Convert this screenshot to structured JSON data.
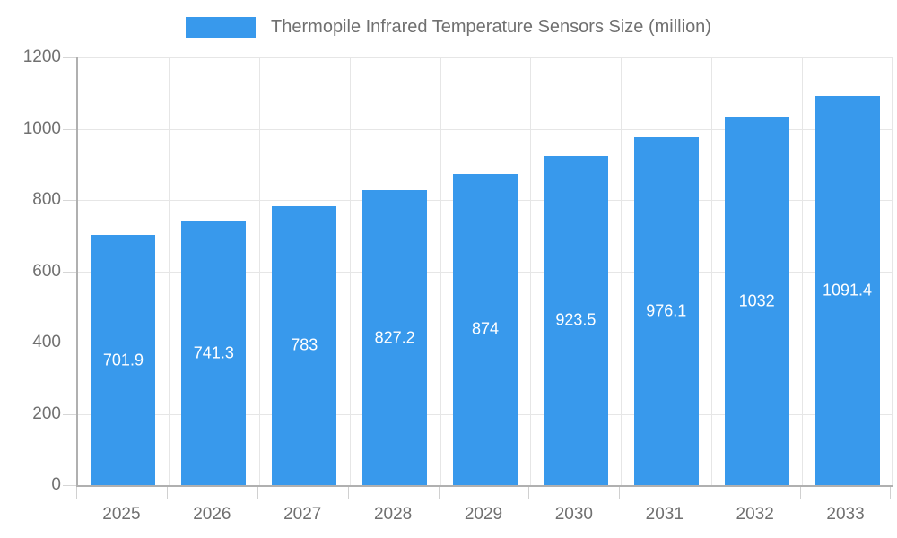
{
  "chart_data": {
    "type": "bar",
    "title": "Thermopile Infrared Temperature Sensors Size (million)",
    "legend": {
      "label": "Thermopile Infrared Temperature Sensors Size (million)",
      "position": "top"
    },
    "categories": [
      "2025",
      "2026",
      "2027",
      "2028",
      "2029",
      "2030",
      "2031",
      "2032",
      "2033"
    ],
    "values": [
      701.9,
      741.3,
      783,
      827.2,
      874,
      923.5,
      976.1,
      1032,
      1091.4
    ],
    "value_labels": [
      "701.9",
      "741.3",
      "783",
      "827.2",
      "874",
      "923.5",
      "976.1",
      "1032",
      "1091.4"
    ],
    "xlabel": "",
    "ylabel": "",
    "ylim": [
      0,
      1200
    ],
    "yticks": [
      0,
      200,
      400,
      600,
      800,
      1000,
      1200
    ],
    "grid": true,
    "colors": {
      "bar": "#3899ec",
      "value_label": "#ffffff",
      "axis_text": "#707070",
      "axis_line": "#b0b0b0",
      "gridline": "#e6e6e6",
      "tick": "#d4d4d4",
      "background": "#ffffff"
    }
  }
}
